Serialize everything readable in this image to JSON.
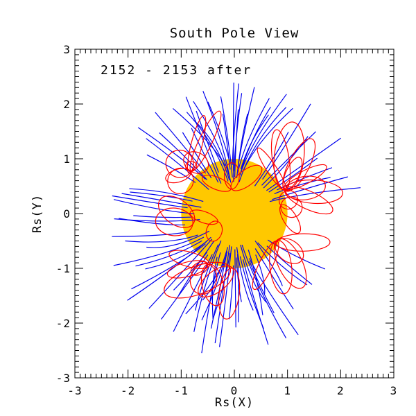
{
  "title": "South Pole View",
  "annotation": "2152 - 2153 after",
  "colors": {
    "background": "#FFFFFF",
    "axis": "#000000",
    "sun": "#FFC800",
    "open_field_lines": "#0000EE",
    "closed_field_lines": "#FF0000"
  },
  "chart_data": {
    "type": "line",
    "title": "South Pole View",
    "annotation": "2152 - 2153 after",
    "xlabel": "Rs(X)",
    "ylabel": "Rs(Y)",
    "xlim": [
      -3,
      3
    ],
    "ylim": [
      -3,
      3
    ],
    "x_ticks": [
      -3,
      -2,
      -1,
      0,
      1,
      2,
      3
    ],
    "y_ticks": [
      -3,
      -2,
      -1,
      0,
      1,
      2,
      3
    ],
    "minor_tick_interval": 0.1,
    "grid": false,
    "legend": "none",
    "sun": {
      "center": [
        0,
        0
      ],
      "radius_rs": 1.0,
      "color": "#FFC800"
    },
    "series": [
      {
        "name": "open field lines",
        "color": "#0000EE",
        "bundles": [
          {
            "foot_deg": [
              78,
              102
            ],
            "dir_deg": [
              60,
              118
            ],
            "count": 20,
            "r_start": [
              0.55,
              0.95
            ],
            "r_end": [
              1.8,
              2.5
            ]
          },
          {
            "foot_deg": [
              112,
              140
            ],
            "dir_deg": [
              108,
              148
            ],
            "count": 9,
            "r_start": [
              0.6,
              0.95
            ],
            "r_end": [
              1.7,
              2.4
            ]
          },
          {
            "foot_deg": [
              158,
              200
            ],
            "dir_deg": [
              166,
              188
            ],
            "count": 9,
            "r_start": [
              0.6,
              0.95
            ],
            "r_end": [
              1.9,
              2.35
            ]
          },
          {
            "foot_deg": [
              212,
              250
            ],
            "dir_deg": [
              196,
              258
            ],
            "count": 16,
            "r_start": [
              0.55,
              0.95
            ],
            "r_end": [
              1.7,
              2.75
            ]
          },
          {
            "foot_deg": [
              255,
              288
            ],
            "dir_deg": [
              246,
              298
            ],
            "count": 18,
            "r_start": [
              0.55,
              0.95
            ],
            "r_end": [
              1.6,
              2.55
            ]
          },
          {
            "foot_deg": [
              292,
              322
            ],
            "dir_deg": [
              288,
              326
            ],
            "count": 7,
            "r_start": [
              0.6,
              0.95
            ],
            "r_end": [
              1.5,
              2.1
            ]
          },
          {
            "foot_deg": [
              18,
              52
            ],
            "dir_deg": [
              12,
              58
            ],
            "count": 10,
            "r_start": [
              0.6,
              0.95
            ],
            "r_end": [
              1.7,
              2.5
            ]
          }
        ]
      },
      {
        "name": "closed field line loops",
        "color": "#FF0000",
        "clusters": [
          {
            "anchor_deg": 138,
            "anchor_r": 1.12,
            "tip_deg": [
              100,
              162
            ],
            "apex_r": [
              1.25,
              2.0
            ],
            "count": 7,
            "width_rs": [
              0.1,
              0.28
            ]
          },
          {
            "anchor_deg": 192,
            "anchor_r": 0.8,
            "tip_deg": [
              168,
              186
            ],
            "apex_r": [
              1.3,
              1.6
            ],
            "count": 2,
            "width_rs": [
              0.18,
              0.3
            ]
          },
          {
            "anchor_deg": 25,
            "anchor_r": 1.05,
            "tip_deg": [
              2,
              72
            ],
            "apex_r": [
              1.25,
              2.1
            ],
            "count": 9,
            "width_rs": [
              0.08,
              0.3
            ]
          },
          {
            "anchor_deg": 10,
            "anchor_r": 0.9,
            "tip_deg": [
              -15,
              20
            ],
            "apex_r": [
              1.05,
              1.4
            ],
            "count": 3,
            "width_rs": [
              0.1,
              0.2
            ]
          },
          {
            "anchor_deg": 243,
            "anchor_r": 1.05,
            "tip_deg": [
              212,
              258
            ],
            "apex_r": [
              1.35,
              1.85
            ],
            "count": 5,
            "width_rs": [
              0.1,
              0.25
            ]
          },
          {
            "anchor_deg": 266,
            "anchor_r": 1.0,
            "tip_deg": [
              228,
              268
            ],
            "apex_r": [
              1.5,
              2.0
            ],
            "count": 3,
            "width_rs": [
              0.15,
              0.3
            ]
          },
          {
            "anchor_deg": 328,
            "anchor_r": 0.95,
            "tip_deg": [
              288,
              342
            ],
            "apex_r": [
              1.35,
              1.9
            ],
            "count": 5,
            "width_rs": [
              0.12,
              0.28
            ]
          },
          {
            "anchor_deg": 96,
            "anchor_r": 0.45,
            "tip_deg": [
              60,
              130
            ],
            "apex_r": [
              0.8,
              1.0
            ],
            "count": 3,
            "width_rs": [
              0.1,
              0.2
            ]
          },
          {
            "anchor_deg": 205,
            "anchor_r": 0.35,
            "tip_deg": [
              180,
              230
            ],
            "apex_r": [
              0.65,
              0.95
            ],
            "count": 2,
            "width_rs": [
              0.08,
              0.16
            ]
          }
        ]
      }
    ]
  }
}
